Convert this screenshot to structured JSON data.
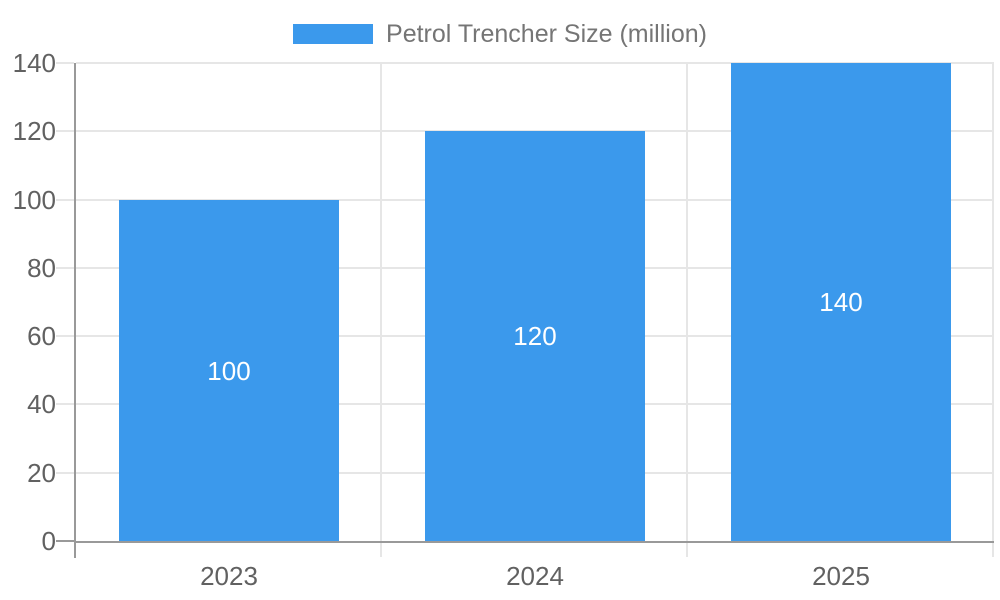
{
  "chart_data": {
    "type": "bar",
    "title": "",
    "legend": "Petrol Trencher Size (million)",
    "categories": [
      "2023",
      "2024",
      "2025"
    ],
    "values": [
      100,
      120,
      140
    ],
    "value_labels": [
      "100",
      "120",
      "140"
    ],
    "series": [
      {
        "name": "Petrol Trencher Size (million)",
        "values": [
          100,
          120,
          140
        ]
      }
    ],
    "xlabel": "",
    "ylabel": "",
    "ylim": [
      0,
      140
    ],
    "yticks": [
      0,
      20,
      40,
      60,
      80,
      100,
      120,
      140
    ],
    "grid": true,
    "legend_position": "top-center",
    "value_label_position": "inside-center",
    "colors": {
      "bar": "#3B99EC",
      "grid": "#E6E6E6",
      "axis": "#999999",
      "axis_text": "#616161",
      "legend_text": "#757575",
      "value_text": "#FFFFFF",
      "background": "#FFFFFF"
    }
  }
}
